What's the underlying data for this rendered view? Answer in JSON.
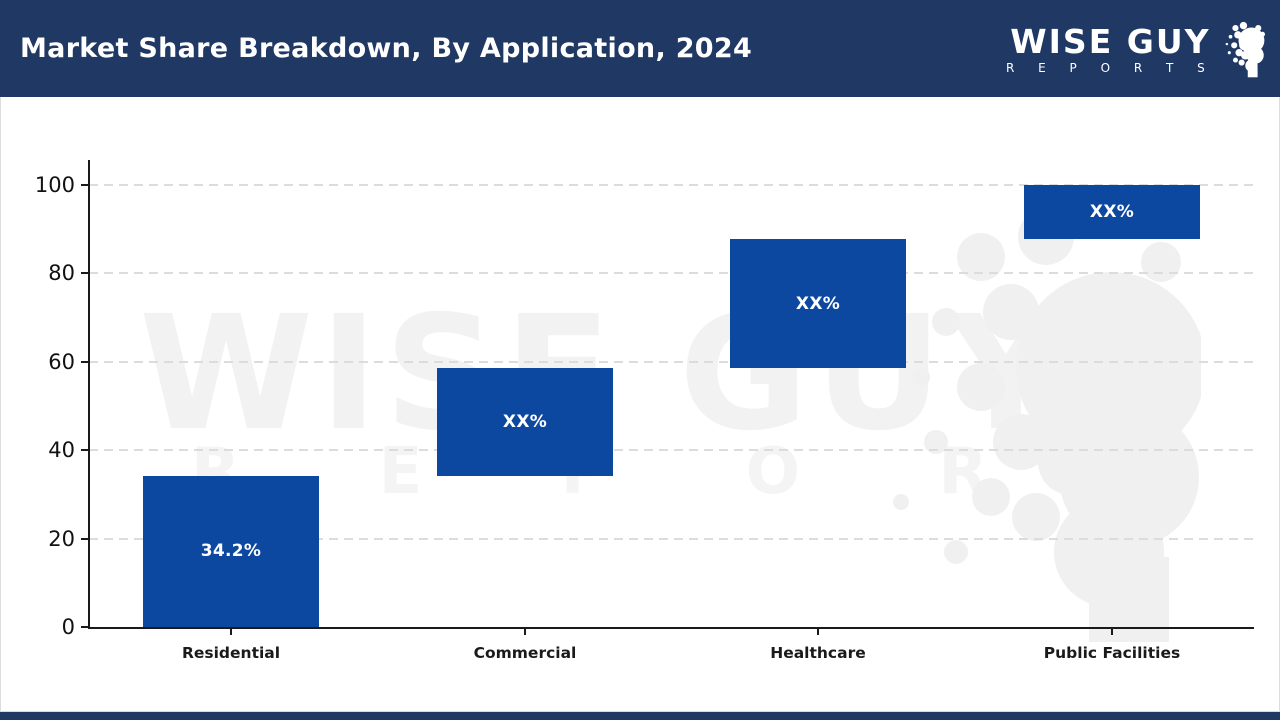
{
  "header": {
    "title": "Market Share Breakdown, By Application, 2024",
    "logo": {
      "wordmark": "WISE GUY",
      "subtext": "R E P O R T S"
    }
  },
  "watermark": {
    "text": "WISE GUY",
    "subtext": "R E P O R T S"
  },
  "colors": {
    "header_bg": "#203864",
    "bar": "#0d48a0",
    "bar_label": "#ffffff",
    "gridline": "#dcdcdc",
    "axis": "#1a1a1a",
    "watermark": "#f2f2f2"
  },
  "chart_data": {
    "type": "bar",
    "subtype": "waterfall",
    "title": "Market Share Breakdown, By Application, 2024",
    "categories": [
      "Residential",
      "Commercial",
      "Healthcare",
      "Public Facilities"
    ],
    "bars": [
      {
        "category": "Residential",
        "start": 0,
        "end": 34.2,
        "value": 34.2,
        "label": "34.2%"
      },
      {
        "category": "Commercial",
        "start": 34.2,
        "end": 58.5,
        "value": 24.3,
        "label": "XX%"
      },
      {
        "category": "Healthcare",
        "start": 58.5,
        "end": 87.7,
        "value": 29.2,
        "label": "XX%"
      },
      {
        "category": "Public Facilities",
        "start": 87.7,
        "end": 100,
        "value": 12.3,
        "label": "XX%"
      }
    ],
    "xlabel": "",
    "ylabel": "",
    "ylim": [
      0,
      100
    ],
    "yticks": [
      0,
      20,
      40,
      60,
      80,
      100
    ],
    "grid": "horizontal-dashed",
    "legend": "none"
  }
}
